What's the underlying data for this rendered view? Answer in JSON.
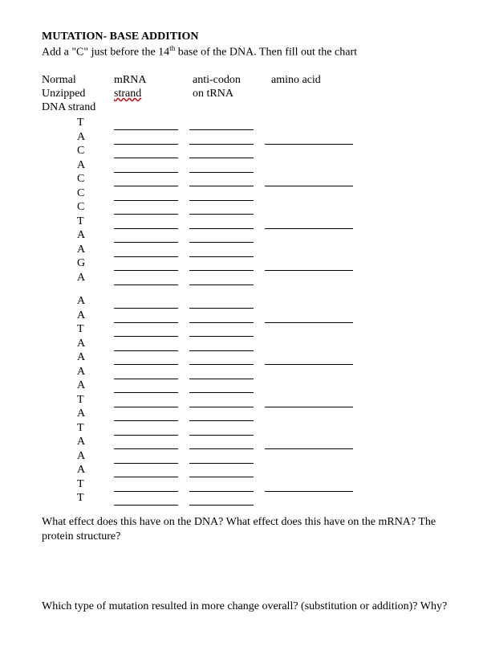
{
  "title": "MUTATION- BASE ADDITION",
  "instruction_pre": "Add a \"C\" just before the 14",
  "instruction_sup": "th",
  "instruction_post": " base of the DNA. Then fill out the chart",
  "headers": {
    "col1_line1": "Normal",
    "col1_line2": "Unzipped",
    "col1_line3": "DNA strand",
    "col2_line1": "",
    "col2_line2": "mRNA",
    "col2_line3": "strand",
    "col3_line1": "",
    "col3_line2": "anti-codon",
    "col3_line3": "on tRNA",
    "col4_line1": "",
    "col4_line2": "amino acid",
    "col4_line3": ""
  },
  "groups": [
    {
      "bases": [
        "T",
        "A",
        "C"
      ]
    },
    {
      "bases": [
        "A",
        "C",
        "C"
      ]
    },
    {
      "bases": [
        "C",
        "T",
        "A"
      ]
    },
    {
      "bases": [
        "A",
        "G",
        "A"
      ]
    },
    {
      "bases": [
        "A",
        "A",
        "T"
      ]
    },
    {
      "bases": [
        "A",
        "A",
        "A"
      ]
    },
    {
      "bases": [
        "A",
        "T",
        "A"
      ]
    },
    {
      "bases": [
        "T",
        "A",
        "A"
      ]
    },
    {
      "bases": [
        "A",
        "T",
        "T"
      ]
    }
  ],
  "questions": {
    "q1": "What effect does this have on the DNA? What effect does this have on the mRNA? The protein structure?",
    "q2": "Which type of mutation resulted in more change overall? (substitution or addition)? Why?"
  },
  "colors": {
    "text": "#000000",
    "background": "#ffffff",
    "squiggle": "#d00000"
  },
  "font": "Times New Roman",
  "font_size_pt": 11
}
